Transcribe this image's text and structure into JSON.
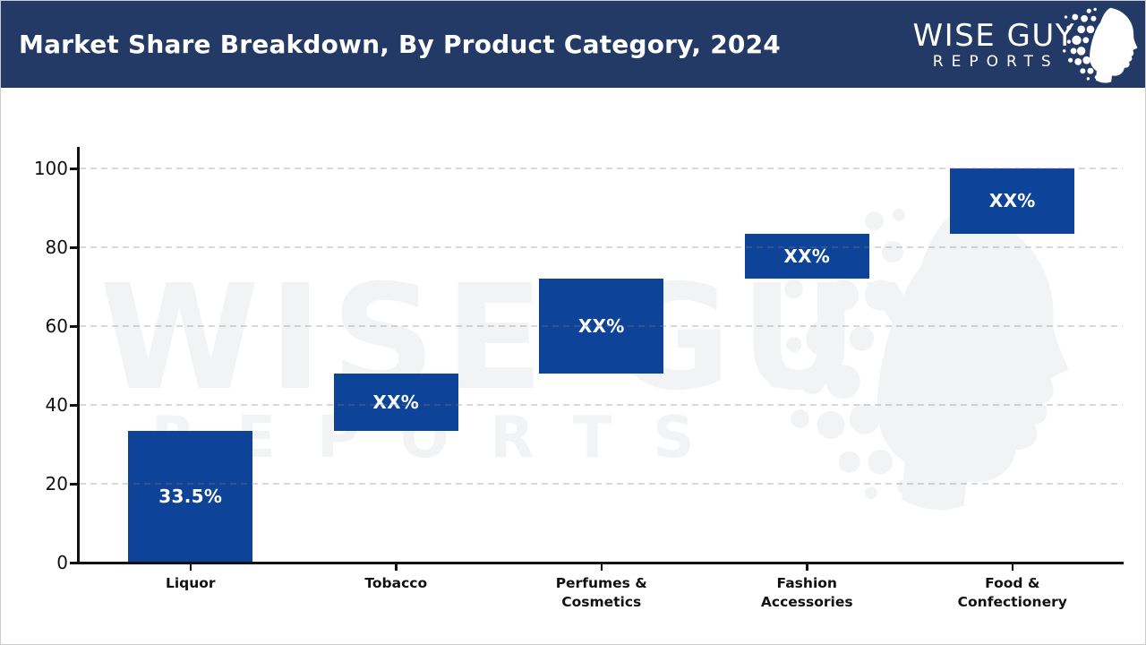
{
  "header": {
    "title": "Market Share Breakdown, By Product Category, 2024",
    "logo": {
      "name": "WISE GUY",
      "tagline": "REPORTS"
    }
  },
  "watermark": {
    "line1": "WISE GUY",
    "line2": "REPORTS"
  },
  "chart_data": {
    "type": "bar",
    "subtype": "waterfall",
    "title": "Market Share Breakdown, By Product Category, 2024",
    "categories": [
      "Liquor",
      "Tobacco",
      "Perfumes &\nCosmetics",
      "Fashion\nAccessories",
      "Food &\nConfectionery"
    ],
    "bars": [
      {
        "category": "Liquor",
        "start": 0,
        "end": 33.5,
        "value": 33.5,
        "label": "33.5%"
      },
      {
        "category": "Tobacco",
        "start": 33.5,
        "end": 48,
        "value": 14.5,
        "label": "XX%"
      },
      {
        "category": "Perfumes & Cosmetics",
        "start": 48,
        "end": 72,
        "value": 24,
        "label": "XX%"
      },
      {
        "category": "Fashion Accessories",
        "start": 72,
        "end": 83.5,
        "value": 11.5,
        "label": "XX%"
      },
      {
        "category": "Food & Confectionery",
        "start": 83.5,
        "end": 100,
        "value": 16.5,
        "label": "XX%"
      }
    ],
    "ylim": [
      0,
      100
    ],
    "yticks": [
      0,
      20,
      40,
      60,
      80,
      100
    ],
    "grid": "horizontal-dashed",
    "legend": "none",
    "xlabel": "",
    "ylabel": ""
  },
  "colors": {
    "header_bg": "#233a66",
    "bar": "#0d4399",
    "value_label": "#ffffff",
    "axis": "#111111",
    "watermark": "#f2f3f5",
    "page_border": "#cccccc"
  }
}
